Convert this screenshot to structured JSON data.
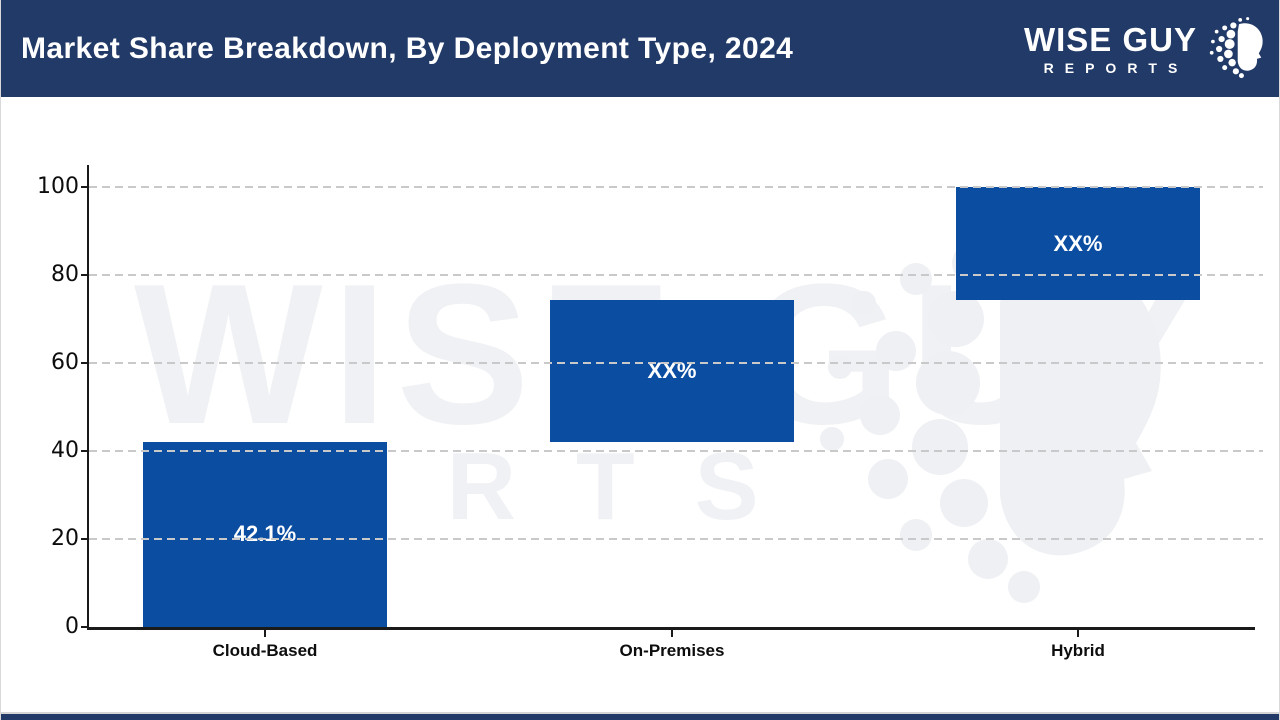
{
  "header": {
    "title": "Market Share Breakdown, By Deployment Type, 2024",
    "bg_color": "#223a68",
    "logo": {
      "line1": "WISE GUY",
      "line2": "REPORTS"
    }
  },
  "watermark": {
    "line1": "WISE GUY",
    "line2": "PORTS"
  },
  "chart_data": {
    "type": "bar",
    "subtype": "waterfall-stacked-segments",
    "title": "Market Share Breakdown, By Deployment Type, 2024",
    "categories": [
      "Cloud-Based",
      "On-Premises",
      "Hybrid"
    ],
    "segments": [
      {
        "category": "Cloud-Based",
        "base": 0,
        "top": 42.1,
        "label": "42.1%"
      },
      {
        "category": "On-Premises",
        "base": 42.1,
        "top": 74.3,
        "label": "XX%"
      },
      {
        "category": "Hybrid",
        "base": 74.3,
        "top": 100,
        "label": "XX%"
      }
    ],
    "y_ticks": [
      0,
      20,
      40,
      60,
      80,
      100
    ],
    "ylim": [
      0,
      105
    ],
    "xlabel": "",
    "ylabel": "",
    "grid": "horizontal-dashed",
    "legend": "none",
    "bar_color": "#0b4da1",
    "bar_label_color": "#ffffff",
    "grid_color": "#c9c9c9",
    "axis_color": "#1a1a1a"
  },
  "colors": {
    "header_bg": "#223a68",
    "footer_bg": "#223a68",
    "watermark": "#f0f1f4",
    "page_border": "#d9d9d9"
  }
}
